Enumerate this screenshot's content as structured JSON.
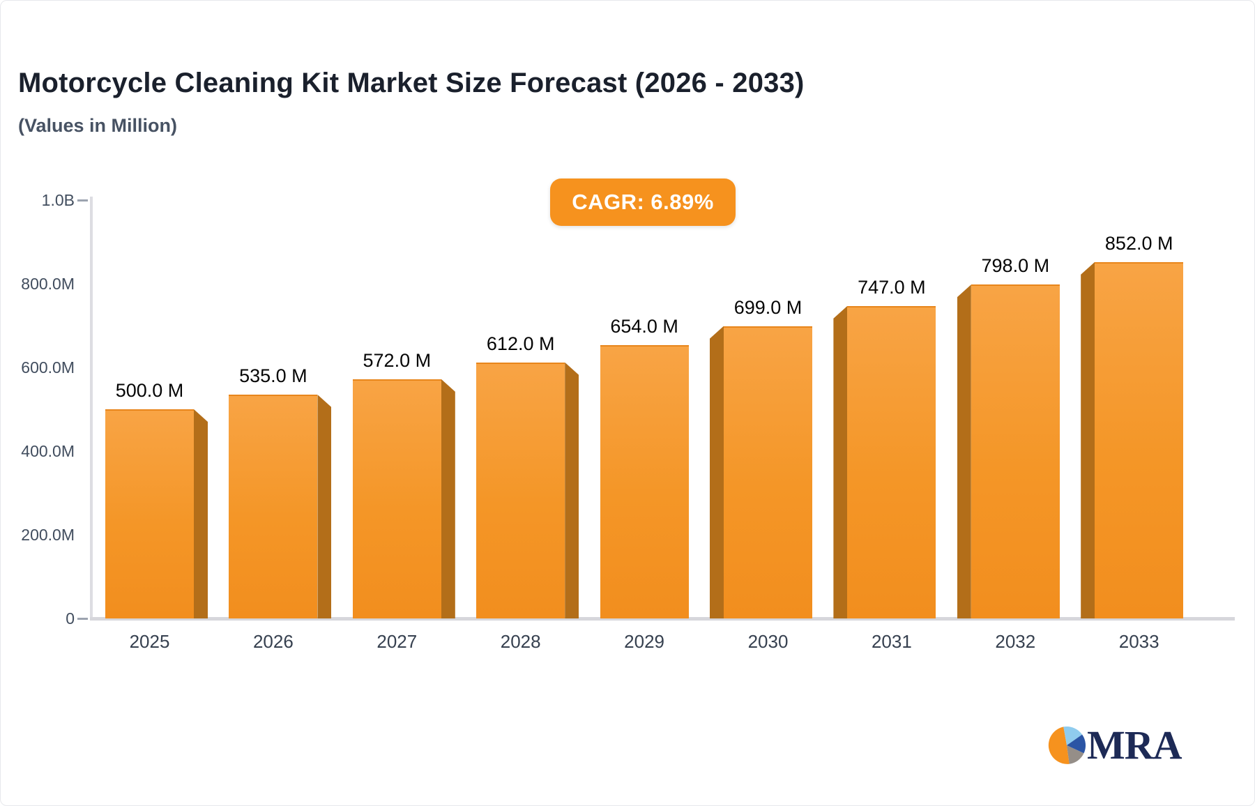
{
  "header": {
    "title": "Motorcycle Cleaning Kit Market Size Forecast (2026 - 2033)",
    "subtitle": "(Values in Million)",
    "cagr_badge": "CAGR: 6.89%"
  },
  "chart_data": {
    "type": "bar",
    "title": "Motorcycle Cleaning Kit Market Size Forecast (2026 - 2033)",
    "subtitle": "(Values in Million)",
    "annotation": "CAGR: 6.89%",
    "categories": [
      "2025",
      "2026",
      "2027",
      "2028",
      "2029",
      "2030",
      "2031",
      "2032",
      "2033"
    ],
    "values": [
      500,
      535,
      572,
      612,
      654,
      699,
      747,
      798,
      852
    ],
    "value_labels": [
      "500.0 M",
      "535.0 M",
      "572.0 M",
      "612.0 M",
      "654.0 M",
      "699.0 M",
      "747.0 M",
      "798.0 M",
      "852.0 M"
    ],
    "xlabel": "",
    "ylabel": "",
    "ylim": [
      0,
      1000
    ],
    "grid": false,
    "legend": false,
    "y_axis": {
      "ticks": [
        {
          "label": "1.0B",
          "value": 1000,
          "dash": true
        },
        {
          "label": "800.0M",
          "value": 800,
          "dash": false
        },
        {
          "label": "600.0M",
          "value": 600,
          "dash": false
        },
        {
          "label": "400.0M",
          "value": 400,
          "dash": false
        },
        {
          "label": "200.0M",
          "value": 200,
          "dash": false
        },
        {
          "label": "0",
          "value": 0,
          "dash": true
        }
      ]
    },
    "colors": {
      "bar_face_top": "#F8A445",
      "bar_face_bottom": "#F28E1E",
      "bar_side": "#B36E19",
      "accent": "#F6921E",
      "title_text": "#1A202C",
      "subtitle_text": "#475263",
      "axis_text": "#414D5E",
      "category_text": "#36404F",
      "axis_line": "#DDDDE2",
      "logo_navy": "#1D2A56"
    }
  },
  "logo": {
    "text": "MRA"
  }
}
